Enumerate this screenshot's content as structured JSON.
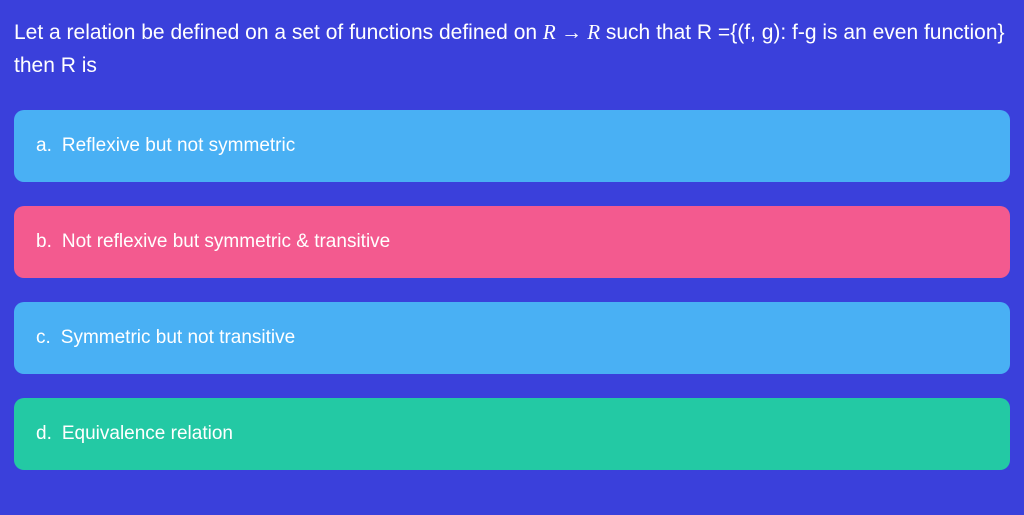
{
  "question": {
    "text_before_math": "Let a relation be defined on a set of functions defined on ",
    "math_expr": "R → R",
    "text_after_math": " such that R ={(f, g): f-g is an even function} then R is"
  },
  "options": [
    {
      "letter": "a.",
      "text": "Reflexive but not symmetric",
      "bg_class": "opt-a"
    },
    {
      "letter": "b.",
      "text": "Not reflexive but symmetric & transitive",
      "bg_class": "opt-b"
    },
    {
      "letter": "c.",
      "text": "Symmetric but not transitive",
      "bg_class": "opt-c"
    },
    {
      "letter": "d.",
      "text": "Equivalence relation",
      "bg_class": "opt-d"
    }
  ],
  "styling": {
    "background_color": "#3a40db",
    "question_color": "#ffffff",
    "question_fontsize": 21,
    "option_fontsize": 19,
    "option_height": 72,
    "option_radius": 10,
    "option_gap": 24,
    "option_colors": {
      "a": "#49b0f4",
      "b": "#f35a8f",
      "c": "#49b0f4",
      "d": "#23c9a4"
    },
    "option_text_color": "#ffffff"
  }
}
